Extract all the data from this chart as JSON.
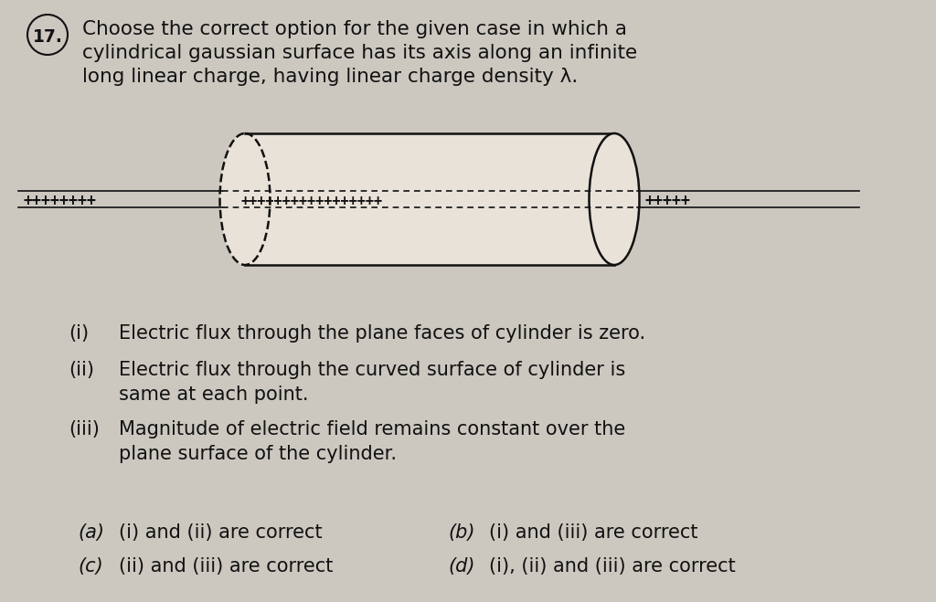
{
  "bg_color": "#ccc8c0",
  "text_color": "#111111",
  "question_number": "17.",
  "q_line1": "Choose the correct option for the given case in which a",
  "q_line2": "cylindrical gaussian surface has its axis along an infinite",
  "q_line3": "long linear charge, having linear charge density λ.",
  "stmt1_num": "(i)",
  "stmt1_text": "Electric flux through the plane faces of cylinder is zero.",
  "stmt2_num": "(ii)",
  "stmt2_text1": "Electric flux through the curved surface of cylinder is",
  "stmt2_text2": "same at each point.",
  "stmt3_num": "(iii)",
  "stmt3_text1": "Magnitude of electric field remains constant over the",
  "stmt3_text2": "plane surface of the cylinder.",
  "opt_a_label": "(a)",
  "opt_a_text": "(i) and (ii) are correct",
  "opt_b_label": "(b)",
  "opt_b_text": "(i) and (iii) are correct",
  "opt_c_label": "(c)",
  "opt_c_text": "(ii) and (iii) are correct",
  "opt_d_label": "(d)",
  "opt_d_text": "(i), (ii) and (iii) are correct",
  "cyl_face_color": "#e8e2d8",
  "cyl_edge_color": "#111111",
  "line_color": "#111111"
}
